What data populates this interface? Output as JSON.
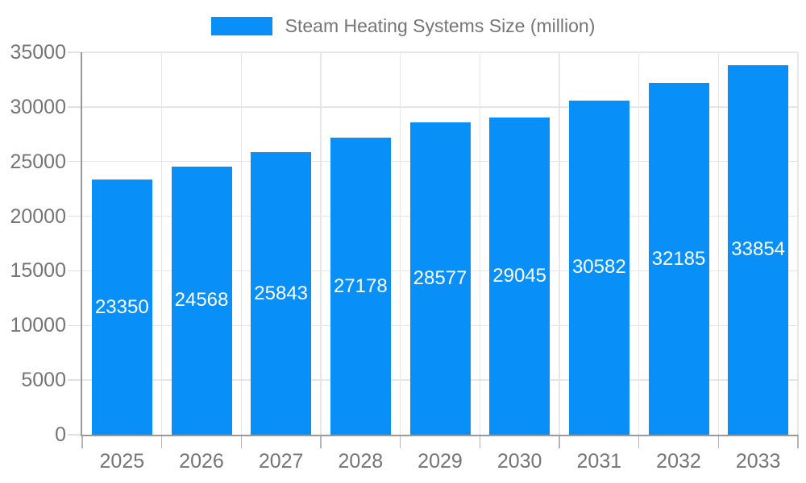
{
  "chart_data": {
    "type": "bar",
    "legend": "Steam Heating Systems Size (million)",
    "categories": [
      "2025",
      "2026",
      "2027",
      "2028",
      "2029",
      "2030",
      "2031",
      "2032",
      "2033"
    ],
    "values": [
      23350,
      24568,
      25843,
      27178,
      28577,
      29045,
      30582,
      32185,
      33854
    ],
    "title": "",
    "xlabel": "",
    "ylabel": "",
    "ylim": [
      0,
      35000
    ],
    "yticks": [
      0,
      5000,
      10000,
      15000,
      20000,
      25000,
      30000,
      35000
    ],
    "grid": true,
    "legend_position": "top-center",
    "bar_value_labels": "inside-center-white",
    "colors": {
      "bar": "#0890f8",
      "bar_label_text": "#ffffff",
      "axis_text": "#757575",
      "legend_text": "#757575",
      "gridline": "#e6e6e6",
      "axis_line": "#999999",
      "x_tick": "#b5b5b5",
      "y_tick": "#e0e0e0"
    }
  }
}
